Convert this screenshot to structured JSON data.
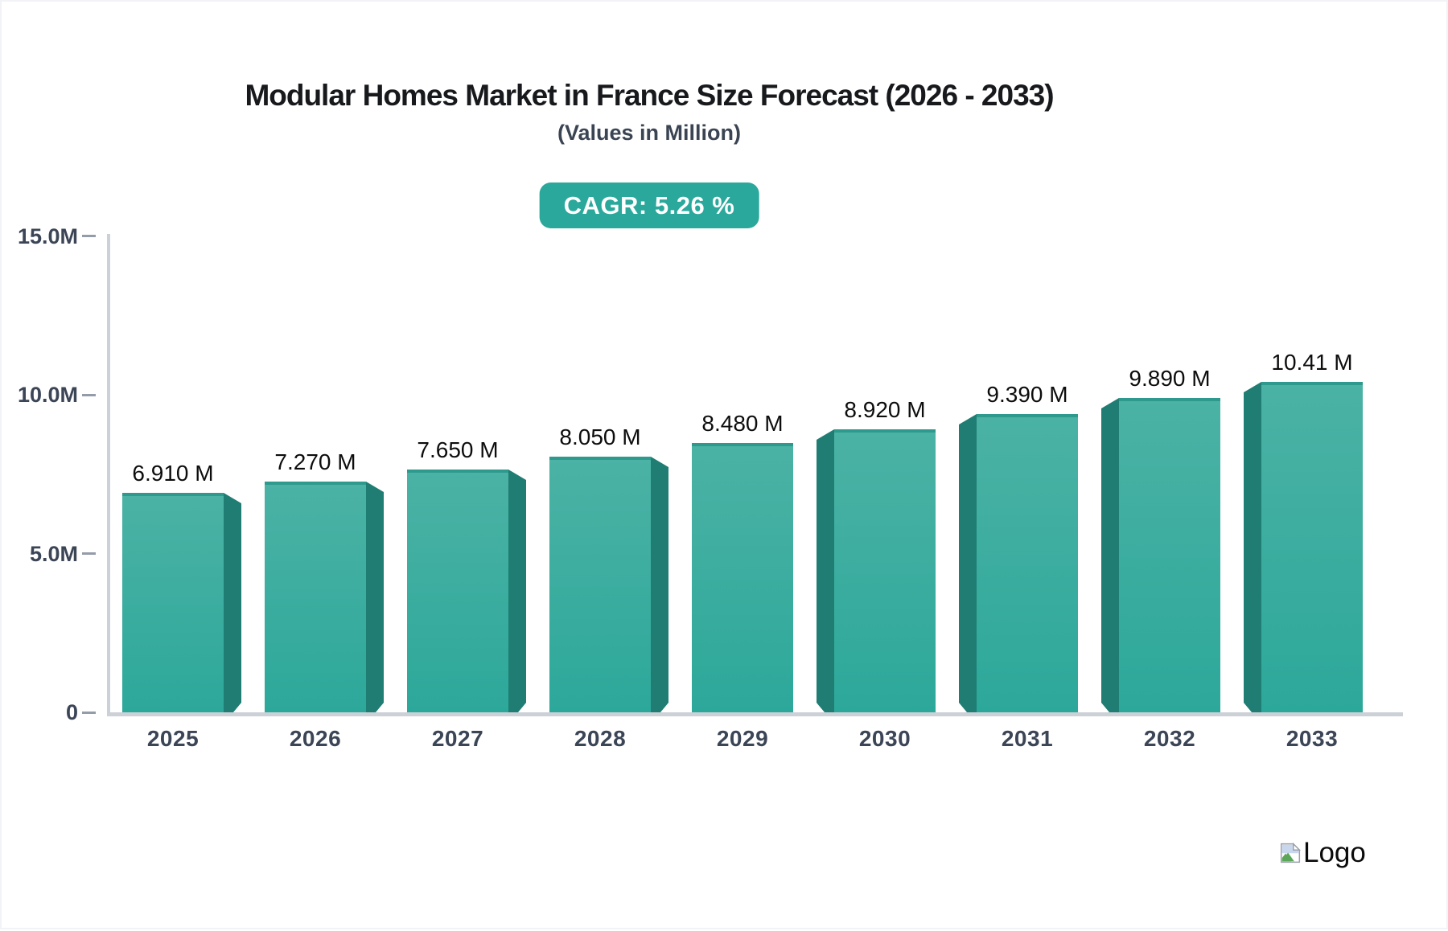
{
  "header": {
    "title": "Modular Homes Market in France Size Forecast (2026 - 2033)",
    "subtitle": "(Values in Million)",
    "cagr_badge": "CAGR: 5.26 %"
  },
  "footer": {
    "logo_alt": "Logo",
    "logo_icon": "broken-image-icon"
  },
  "chart_data": {
    "type": "bar",
    "title": "Modular Homes Market in France Size Forecast (2026 - 2033)",
    "subtitle": "(Values in Million)",
    "unit": "Million",
    "cagr_percent": 5.26,
    "categories": [
      "2025",
      "2026",
      "2027",
      "2028",
      "2029",
      "2030",
      "2031",
      "2032",
      "2033"
    ],
    "values": [
      6.91,
      7.27,
      7.65,
      8.05,
      8.48,
      8.92,
      9.39,
      9.89,
      10.41
    ],
    "value_labels": [
      "6.910 M",
      "7.270 M",
      "7.650 M",
      "8.050 M",
      "8.480 M",
      "8.920 M",
      "9.390 M",
      "9.890 M",
      "10.41 M"
    ],
    "xlabel": "",
    "ylabel": "",
    "ylim": [
      0,
      15
    ],
    "yticks": [
      {
        "value": 0,
        "label": "0"
      },
      {
        "value": 5,
        "label": "5.0M"
      },
      {
        "value": 10,
        "label": "10.0M"
      },
      {
        "value": 15,
        "label": "15.0M"
      }
    ],
    "grid": false,
    "legend": false,
    "style": "3d-perspective-bars",
    "colors": {
      "bar_face_top": "#4bb2a5",
      "bar_face_bottom": "#2ca89a",
      "bar_top_edge": "#2e9a8d",
      "bar_side": "#1f7d73",
      "axis": "#ccd1d8",
      "tick_dash": "#949ca9",
      "axis_label": "#3b4556",
      "value_label": "#0d0d0d",
      "badge_background": "#2aa89b",
      "badge_text": "#ffffff"
    }
  }
}
